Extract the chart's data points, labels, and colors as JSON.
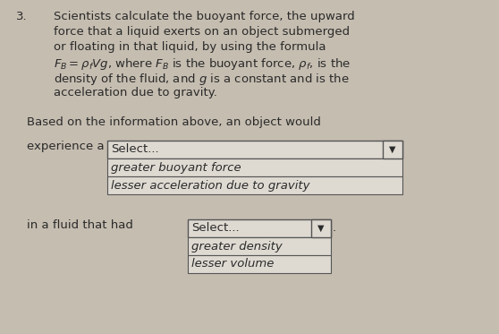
{
  "bg_color": "#c5bdb0",
  "text_color": "#2a2a2a",
  "font_size": 9.5,
  "font_size_small": 8.5,
  "dropdown_bg": "#dedad2",
  "dropdown_border": "#555555",
  "para_lines": [
    "Scientists calculate the buoyant force, the upward",
    "force that a liquid exerts on an object submerged",
    "or floating in that liquid, by using the formula",
    "$F_B = \\rho_f Vg$, where $F_B$ is the buoyant force, $\\rho_f$, is the",
    "density of the fluid, and $g$ is a constant and is the",
    "acceleration due to gravity."
  ],
  "number_label": "3.",
  "based_line": "Based on the information above, an object would",
  "experience_prefix": "experience a",
  "select1_text": "Select...",
  "dropdown1_options": [
    "greater buoyant force",
    "lesser acceleration due to gravity"
  ],
  "in_fluid_prefix": "in a fluid that had",
  "select2_text": "Select...",
  "dropdown2_options": [
    "greater density",
    "lesser volume"
  ]
}
